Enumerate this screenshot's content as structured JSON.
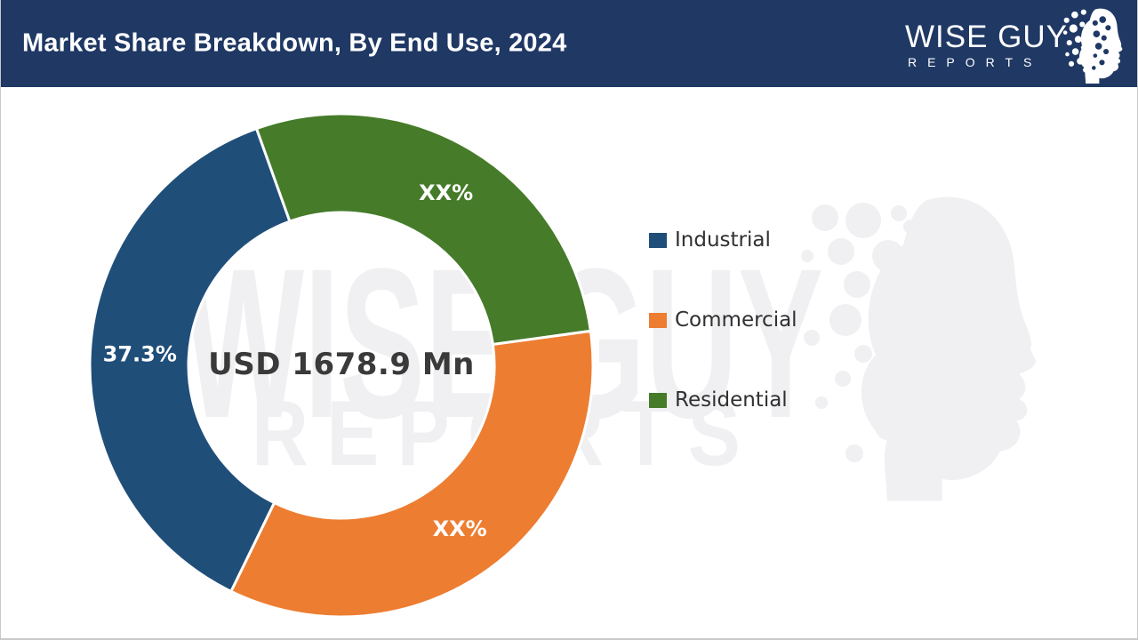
{
  "header": {
    "title": "Market Share Breakdown, By End Use, 2024",
    "logo": {
      "line1": "WISE GUY",
      "line2": "REPORTS"
    }
  },
  "watermark": {
    "line1": "WISE GUY",
    "line2": "REPORTS"
  },
  "chart_data": {
    "type": "pie",
    "subtype": "donut",
    "title": "Market Share Breakdown, By End Use, 2024",
    "center_label": "USD 1678.9 Mn",
    "legend_position": "right",
    "start_angle_deg_clockwise_from_top": 206,
    "slices": [
      {
        "name": "Industrial",
        "label": "37.3%",
        "value_pct": 37.3,
        "color": "#1F4E79"
      },
      {
        "name": "Residential",
        "label": "XX%",
        "value_pct": 28.3,
        "color": "#457B29"
      },
      {
        "name": "Commercial",
        "label": "XX%",
        "value_pct": 34.4,
        "color": "#ED7D31"
      }
    ]
  },
  "legend": {
    "items": [
      {
        "label": "Industrial",
        "color": "#1F4E79"
      },
      {
        "label": "Commercial",
        "color": "#ED7D31"
      },
      {
        "label": "Residential",
        "color": "#457B29"
      }
    ]
  },
  "colors": {
    "header_bg": "#1F3864",
    "center_text": "#3A3A3A",
    "watermark": "#F0F0F2",
    "page_border": "#C9C9C9"
  }
}
